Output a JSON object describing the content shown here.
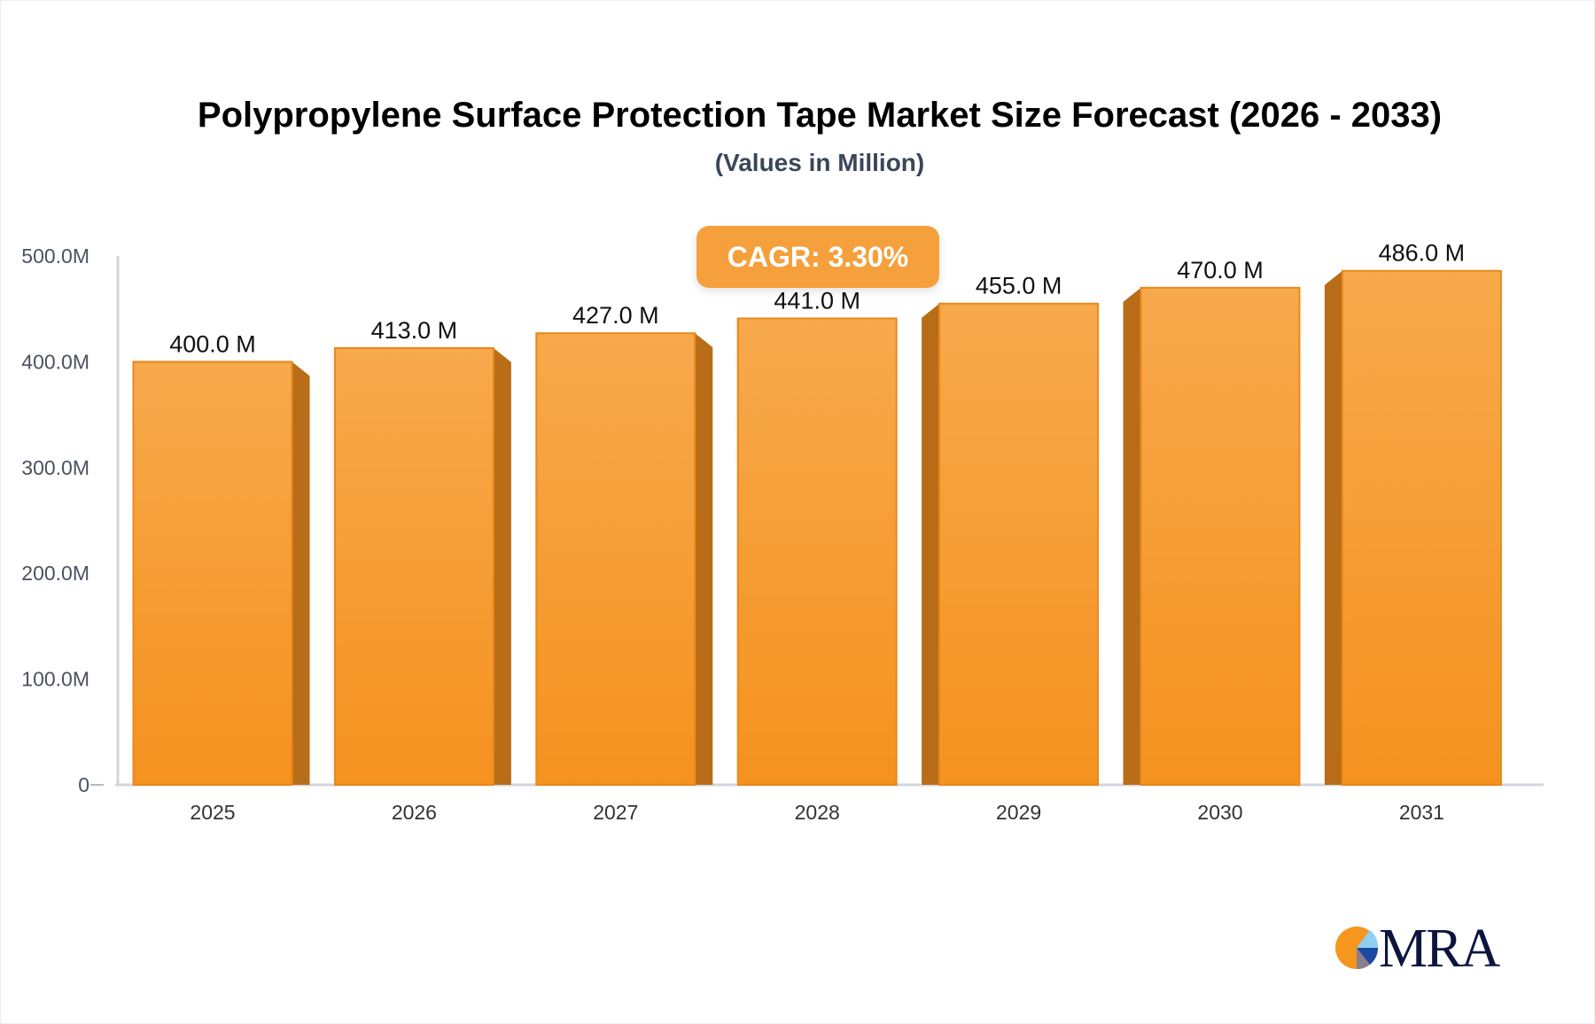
{
  "chart_data": {
    "type": "bar",
    "title": "Polypropylene Surface Protection Tape Market Size Forecast (2026 - 2033)",
    "subtitle": "(Values in Million)",
    "categories": [
      "2025",
      "2026",
      "2027",
      "2028",
      "2029",
      "2030",
      "2031"
    ],
    "values": [
      400.0,
      413.0,
      427.0,
      441.0,
      455.0,
      470.0,
      486.0
    ],
    "data_labels": [
      "400.0 M",
      "413.0 M",
      "427.0 M",
      "441.0 M",
      "455.0 M",
      "470.0 M",
      "486.0 M"
    ],
    "ylim": [
      0,
      500
    ],
    "yticks": [
      0,
      100,
      200,
      300,
      400,
      500
    ],
    "ytick_labels": [
      "0",
      "100.0M",
      "200.0M",
      "300.0M",
      "400.0M",
      "500.0M"
    ],
    "grid": false,
    "annotation": "CAGR: 3.30%",
    "colors": {
      "bar_top": "#f7a94c",
      "bar_bottom": "#f5921f",
      "bar_border": "#e8891c",
      "bar_side": "#b96d18",
      "badge": "#f5a03c"
    }
  },
  "logo": {
    "text": "MRA"
  }
}
